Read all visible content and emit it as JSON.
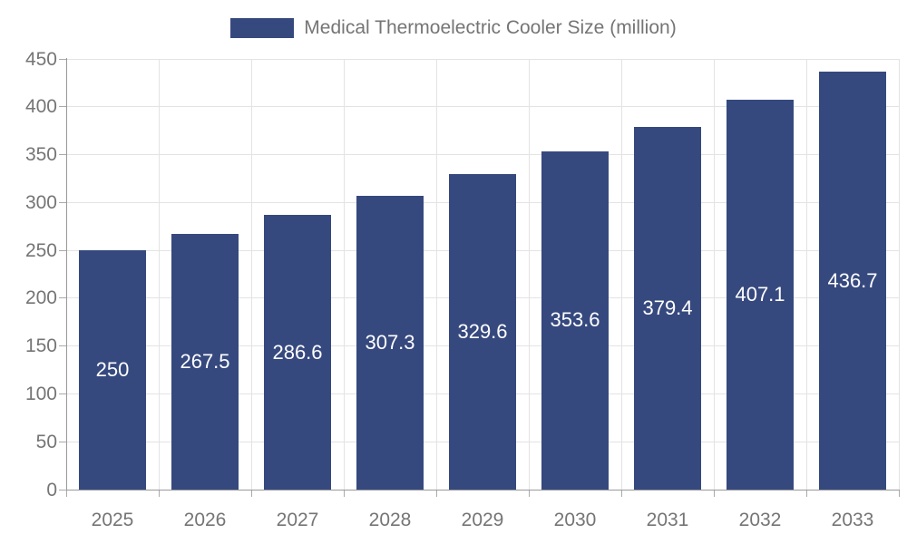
{
  "chart_data": {
    "type": "bar",
    "title": "Medical Thermoelectric Cooler Size (million)",
    "categories": [
      "2025",
      "2026",
      "2027",
      "2028",
      "2029",
      "2030",
      "2031",
      "2032",
      "2033"
    ],
    "values": [
      250,
      267.5,
      286.6,
      307.3,
      329.6,
      353.6,
      379.4,
      407.1,
      436.7
    ],
    "value_labels": [
      "250",
      "267.5",
      "286.6",
      "307.3",
      "329.6",
      "353.6",
      "379.4",
      "407.1",
      "436.7"
    ],
    "xlabel": "",
    "ylabel": "",
    "ylim": [
      0,
      450
    ],
    "y_tick_step": 50,
    "y_tick_labels": [
      "0",
      "50",
      "100",
      "150",
      "200",
      "250",
      "300",
      "350",
      "400",
      "450"
    ],
    "grid": true,
    "legend_position": "top-center",
    "value_label_position": "inside-middle",
    "colors": {
      "bar": "#36497e",
      "bar_label_text": "#ffffff",
      "axis_text": "#757575",
      "gridline": "#e3e3e3",
      "axis_line": "#999999",
      "tick_mark": "#aaaaaa",
      "background": "#ffffff"
    }
  }
}
